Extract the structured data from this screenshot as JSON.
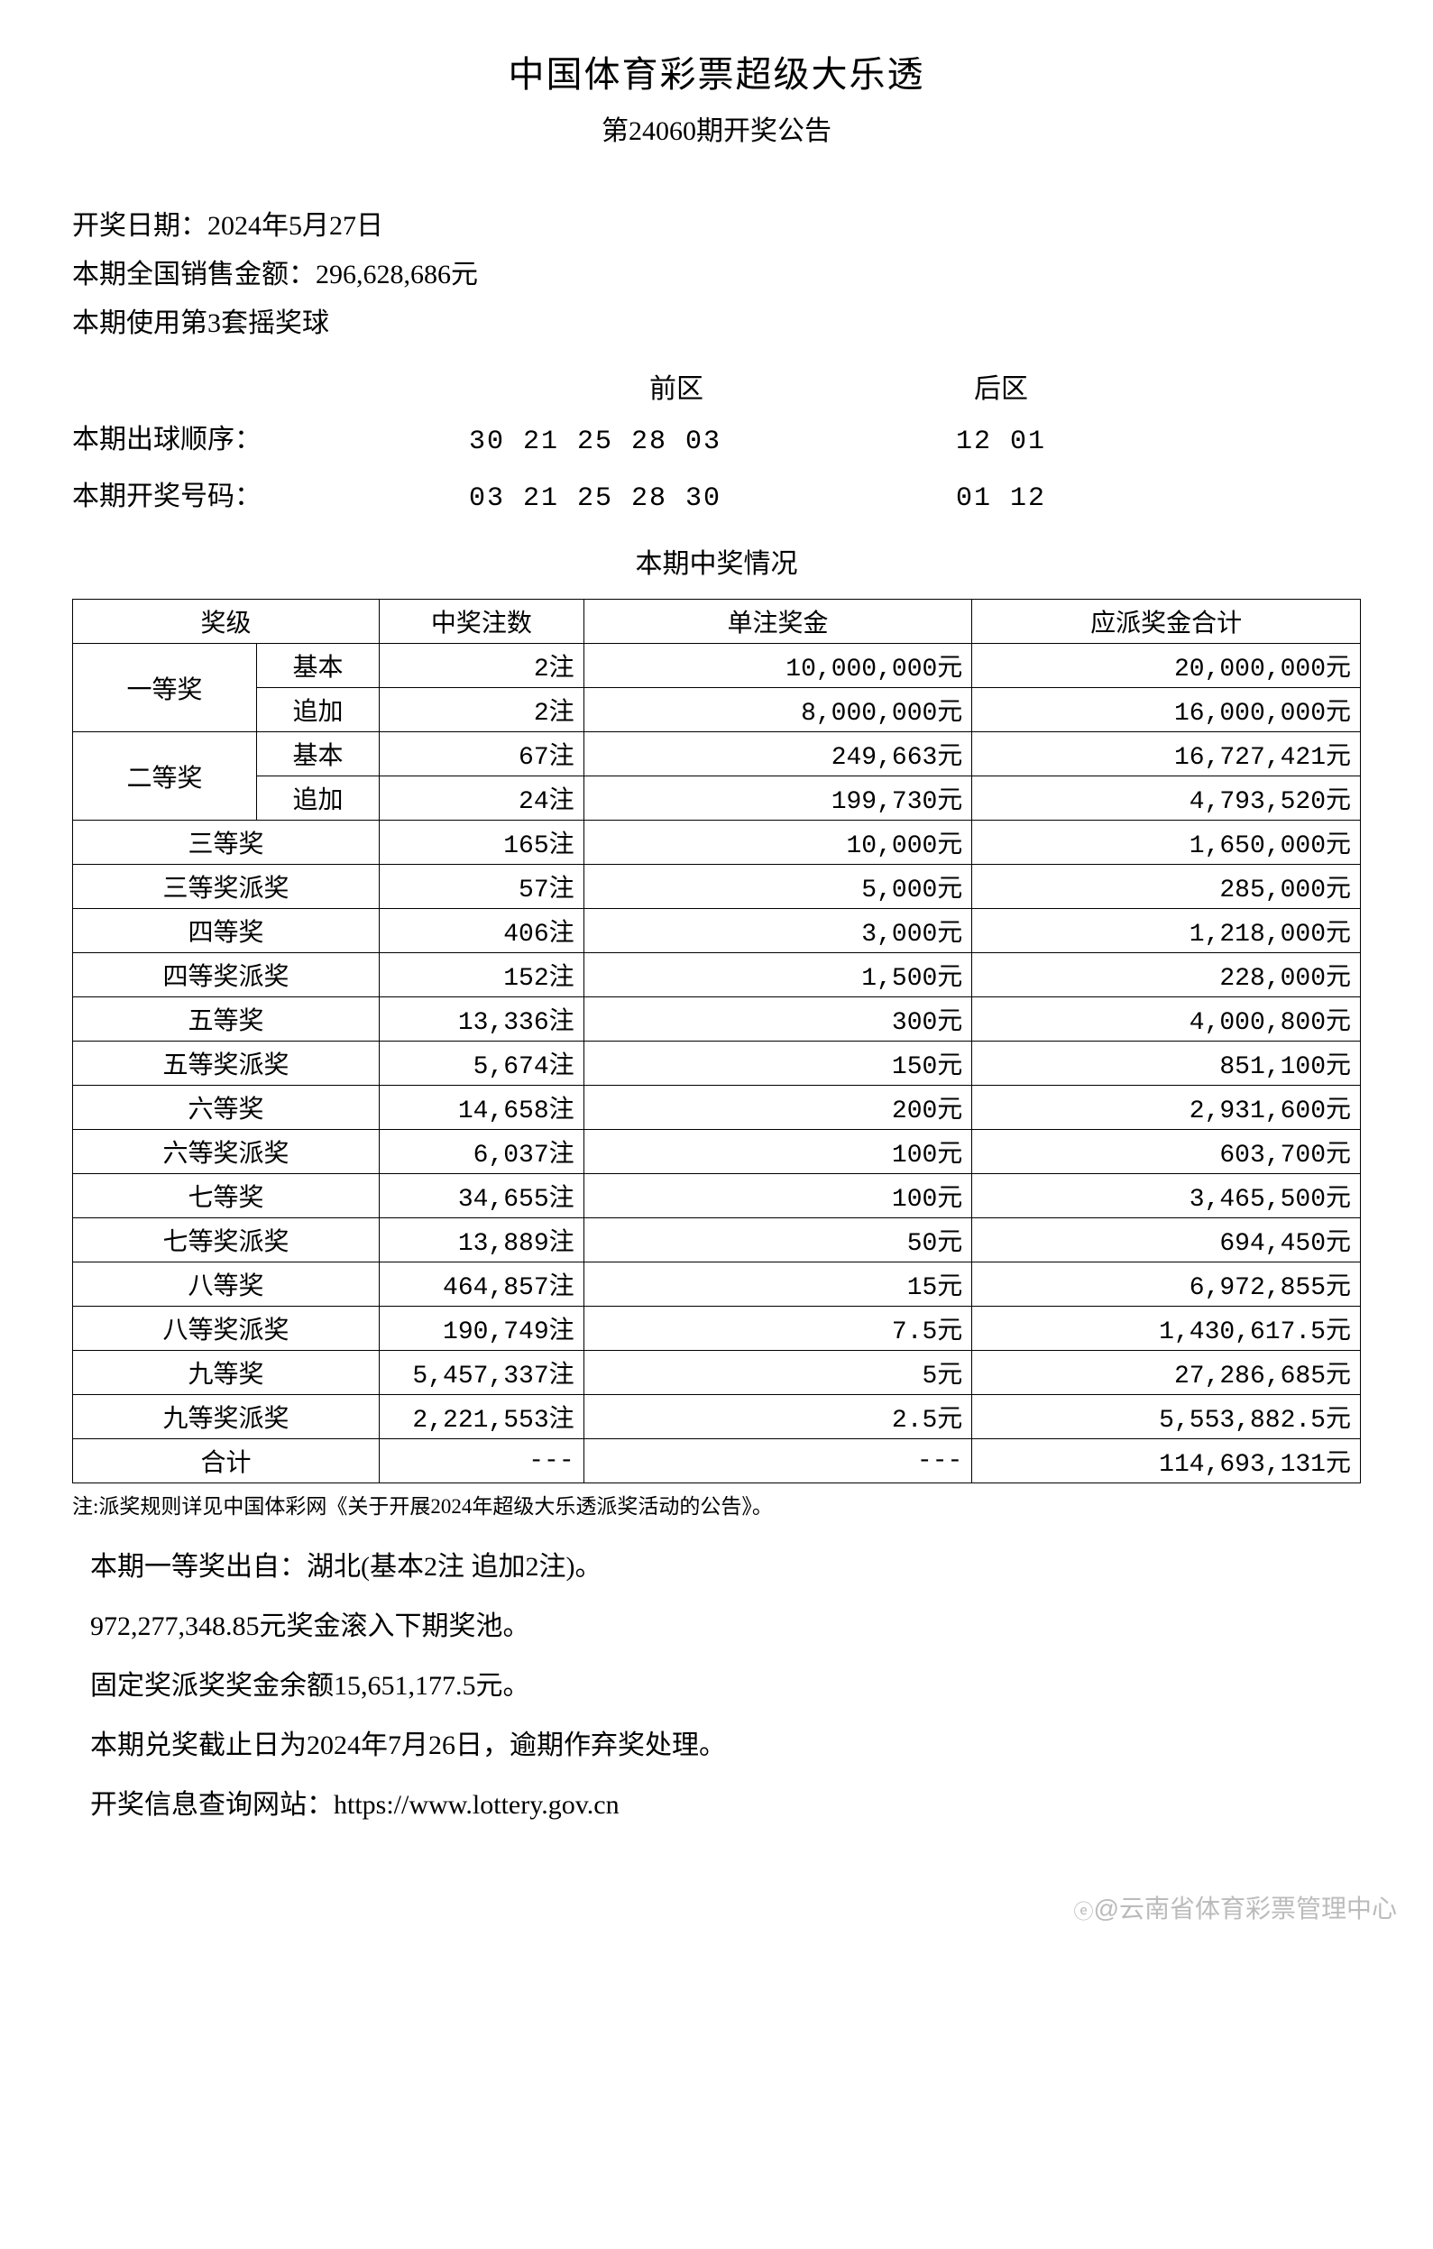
{
  "header": {
    "title": "中国体育彩票超级大乐透",
    "subtitle": "第24060期开奖公告"
  },
  "info": {
    "draw_date_label": "开奖日期：",
    "draw_date_value": "2024年5月27日",
    "sales_label": "本期全国销售金额：",
    "sales_value": "296,628,686元",
    "ball_set": "本期使用第3套摇奖球"
  },
  "numbers": {
    "front_header": "前区",
    "back_header": "后区",
    "draw_order_label": "本期出球顺序：",
    "draw_order_front": "30 21 25 28 03",
    "draw_order_back": "12 01",
    "winning_label": "本期开奖号码：",
    "winning_front": "03 21 25 28 30",
    "winning_back": "01 12"
  },
  "prize_heading": "本期中奖情况",
  "table": {
    "headers": {
      "tier": "奖级",
      "count": "中奖注数",
      "per": "单注奖金",
      "total": "应派奖金合计"
    },
    "tier1_label": "一等奖",
    "tier2_label": "二等奖",
    "basic_label": "基本",
    "addon_label": "追加",
    "rows": [
      {
        "tier": "三等奖",
        "count": "165注",
        "per": "10,000元",
        "total": "1,650,000元"
      },
      {
        "tier": "三等奖派奖",
        "count": "57注",
        "per": "5,000元",
        "total": "285,000元"
      },
      {
        "tier": "四等奖",
        "count": "406注",
        "per": "3,000元",
        "total": "1,218,000元"
      },
      {
        "tier": "四等奖派奖",
        "count": "152注",
        "per": "1,500元",
        "total": "228,000元"
      },
      {
        "tier": "五等奖",
        "count": "13,336注",
        "per": "300元",
        "total": "4,000,800元"
      },
      {
        "tier": "五等奖派奖",
        "count": "5,674注",
        "per": "150元",
        "total": "851,100元"
      },
      {
        "tier": "六等奖",
        "count": "14,658注",
        "per": "200元",
        "total": "2,931,600元"
      },
      {
        "tier": "六等奖派奖",
        "count": "6,037注",
        "per": "100元",
        "total": "603,700元"
      },
      {
        "tier": "七等奖",
        "count": "34,655注",
        "per": "100元",
        "total": "3,465,500元"
      },
      {
        "tier": "七等奖派奖",
        "count": "13,889注",
        "per": "50元",
        "total": "694,450元"
      },
      {
        "tier": "八等奖",
        "count": "464,857注",
        "per": "15元",
        "total": "6,972,855元"
      },
      {
        "tier": "八等奖派奖",
        "count": "190,749注",
        "per": "7.5元",
        "total": "1,430,617.5元"
      },
      {
        "tier": "九等奖",
        "count": "5,457,337注",
        "per": "5元",
        "total": "27,286,685元"
      },
      {
        "tier": "九等奖派奖",
        "count": "2,221,553注",
        "per": "2.5元",
        "total": "5,553,882.5元"
      }
    ],
    "tier1_basic": {
      "count": "2注",
      "per": "10,000,000元",
      "total": "20,000,000元"
    },
    "tier1_addon": {
      "count": "2注",
      "per": "8,000,000元",
      "total": "16,000,000元"
    },
    "tier2_basic": {
      "count": "67注",
      "per": "249,663元",
      "total": "16,727,421元"
    },
    "tier2_addon": {
      "count": "24注",
      "per": "199,730元",
      "total": "4,793,520元"
    },
    "sum_label": "合计",
    "sum_count": "---",
    "sum_per": "---",
    "sum_total": "114,693,131元"
  },
  "footnote": "注:派奖规则详见中国体彩网《关于开展2024年超级大乐透派奖活动的公告》。",
  "bottom": {
    "line1": "本期一等奖出自：湖北(基本2注 追加2注)。",
    "line2": "972,277,348.85元奖金滚入下期奖池。",
    "line3": "固定奖派奖奖金余额15,651,177.5元。",
    "line4": "本期兑奖截止日为2024年7月26日，逾期作弃奖处理。",
    "line5": "开奖信息查询网站：https://www.lottery.gov.cn"
  },
  "watermark": "@云南省体育彩票管理中心"
}
